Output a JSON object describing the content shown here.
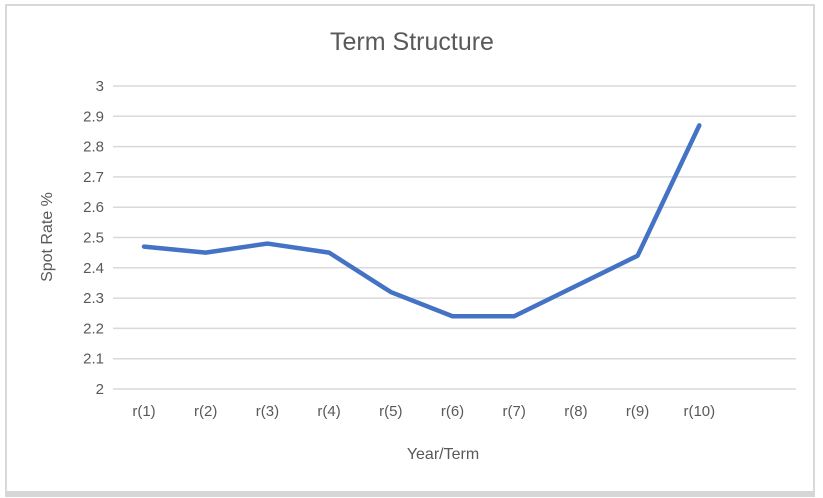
{
  "chart": {
    "title": "Term Structure",
    "x_axis_label": "Year/Term",
    "y_axis_label": "Spot Rate %"
  },
  "chart_data": {
    "type": "line",
    "title": "Term Structure",
    "xlabel": "Year/Term",
    "ylabel": "Spot Rate %",
    "categories": [
      "r(1)",
      "r(2)",
      "r(3)",
      "r(4)",
      "r(5)",
      "r(6)",
      "r(7)",
      "r(8)",
      "r(9)",
      "r(10)"
    ],
    "values": [
      2.47,
      2.45,
      2.48,
      2.45,
      2.32,
      2.24,
      2.24,
      2.34,
      2.44,
      2.87
    ],
    "ylim": [
      2,
      3
    ],
    "ytick_step": 0.1,
    "ytick_labels": [
      "3",
      "2.9",
      "2.8",
      "2.7",
      "2.6",
      "2.5",
      "2.4",
      "2.3",
      "2.2",
      "2.1",
      "2"
    ],
    "grid": true,
    "legend_position": "none",
    "line_color": "#4472C4",
    "gridline_color": "#D9D9D9",
    "text_color": "#595959",
    "background_color": "#FFFFFF",
    "frame_color": "#D9D9D9"
  }
}
